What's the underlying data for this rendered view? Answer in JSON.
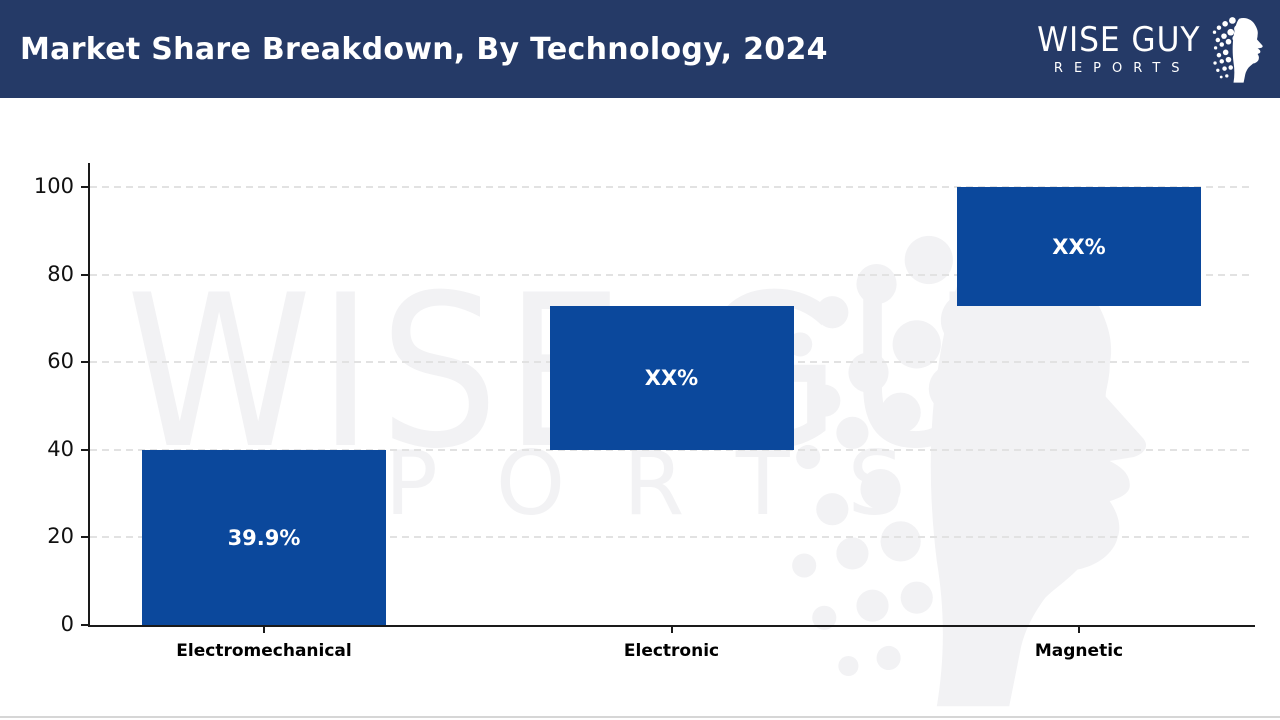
{
  "header": {
    "title": "Market Share Breakdown, By Technology, 2024",
    "logo": {
      "brand": "WISE GUY",
      "sub": "REPORTS"
    }
  },
  "watermark": {
    "brand": "WISE GUY",
    "sub": "REPORTS"
  },
  "chart_data": {
    "type": "bar",
    "subtype": "floating-waterfall",
    "title": "Market Share Breakdown, By Technology, 2024",
    "categories": [
      "Electromechanical",
      "Electronic",
      "Magnetic"
    ],
    "segments": [
      {
        "category": "Electromechanical",
        "start": 0,
        "end": 39.9,
        "value": 39.9,
        "label": "39.9%"
      },
      {
        "category": "Electronic",
        "start": 39.9,
        "end": 72.9,
        "value": 33.0,
        "label": "XX%"
      },
      {
        "category": "Magnetic",
        "start": 72.9,
        "end": 100,
        "value": 27.1,
        "label": "XX%"
      }
    ],
    "xlabel": "",
    "ylabel": "",
    "ylim": [
      0,
      100
    ],
    "yticks": [
      0,
      20,
      40,
      60,
      80,
      100
    ],
    "grid": "horizontal-dashed",
    "legend": "none",
    "bar_color": "#0b489c",
    "label_color": "#ffffff"
  },
  "colors": {
    "header_bg": "#253a67",
    "bar_blue": "#0b489c",
    "gridline": "#e2e2e2",
    "axis": "#1a1a1a",
    "watermark": "#f2f2f4",
    "bottom_line": "#d6d6d6"
  }
}
